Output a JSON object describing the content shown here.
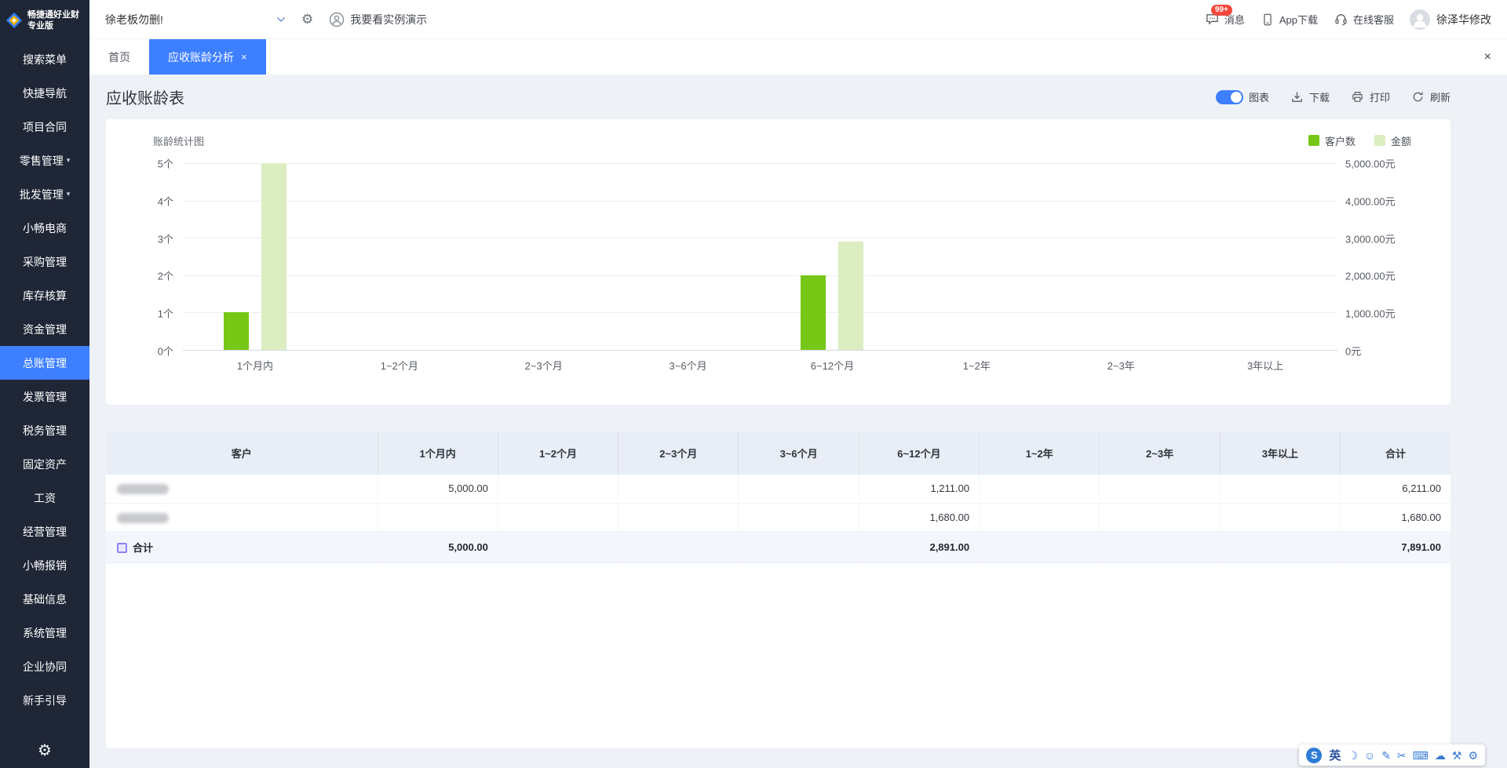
{
  "app": {
    "name": "畅捷通好业财",
    "edition": "专业版"
  },
  "sidebar": {
    "items": [
      {
        "label": "搜索菜单"
      },
      {
        "label": "快捷导航"
      },
      {
        "label": "项目合同"
      },
      {
        "label": "零售管理",
        "has_dropdown": true
      },
      {
        "label": "批发管理",
        "has_dropdown": true
      },
      {
        "label": "小畅电商"
      },
      {
        "label": "采购管理"
      },
      {
        "label": "库存核算"
      },
      {
        "label": "资金管理"
      },
      {
        "label": "总账管理",
        "active": true
      },
      {
        "label": "发票管理"
      },
      {
        "label": "税务管理"
      },
      {
        "label": "固定资产"
      },
      {
        "label": "工资"
      },
      {
        "label": "经营管理"
      },
      {
        "label": "小畅报销"
      },
      {
        "label": "基础信息"
      },
      {
        "label": "系统管理"
      },
      {
        "label": "企业协同"
      },
      {
        "label": "新手引导"
      }
    ]
  },
  "topbar": {
    "company": "徐老板勿删!",
    "demo": "我要看实例演示",
    "message": "消息",
    "message_badge": "99+",
    "app_download": "App下载",
    "online_service": "在线客服",
    "user": "徐泽华修改"
  },
  "tabs": [
    {
      "label": "首页",
      "active": false,
      "closable": false
    },
    {
      "label": "应收账龄分析",
      "active": true,
      "closable": true
    }
  ],
  "page": {
    "title": "应收账龄表",
    "controls": {
      "chart_toggle": "图表",
      "download": "下载",
      "print": "打印",
      "refresh": "刷新"
    }
  },
  "chart_data": {
    "type": "bar",
    "title": "账龄统计图",
    "categories": [
      "1个月内",
      "1~2个月",
      "2~3个月",
      "3~6个月",
      "6~12个月",
      "1~2年",
      "2~3年",
      "3年以上"
    ],
    "series": [
      {
        "name": "客户数",
        "axis": "left",
        "color": "#76c716",
        "values": [
          1,
          0,
          0,
          0,
          2,
          0,
          0,
          0
        ]
      },
      {
        "name": "金额",
        "axis": "right",
        "color": "#dcedc1",
        "values": [
          5000,
          0,
          0,
          0,
          2891,
          0,
          0,
          0
        ]
      }
    ],
    "left_axis": {
      "max": 5,
      "ticks": [
        "5个",
        "4个",
        "3个",
        "2个",
        "1个",
        "0个"
      ]
    },
    "right_axis": {
      "max": 5000,
      "ticks": [
        "5,000.00元",
        "4,000.00元",
        "3,000.00元",
        "2,000.00元",
        "1,000.00元",
        "0元"
      ]
    },
    "legend_position": "top-right",
    "grid": true
  },
  "table": {
    "headers": [
      "客户",
      "1个月内",
      "1~2个月",
      "2~3个月",
      "3~6个月",
      "6~12个月",
      "1~2年",
      "2~3年",
      "3年以上",
      "合计"
    ],
    "rows": [
      {
        "customer": "",
        "redacted": true,
        "values": [
          "5,000.00",
          "",
          "",
          "",
          "1,211.00",
          "",
          "",
          "",
          "6,211.00"
        ]
      },
      {
        "customer": "",
        "redacted": true,
        "values": [
          "",
          "",
          "",
          "",
          "1,680.00",
          "",
          "",
          "",
          "1,680.00"
        ]
      }
    ],
    "total": {
      "label": "合计",
      "values": [
        "5,000.00",
        "",
        "",
        "",
        "2,891.00",
        "",
        "",
        "",
        "7,891.00"
      ]
    }
  },
  "ime": {
    "logo": "S",
    "lang": "英",
    "icons": [
      {
        "name": "moon-icon",
        "glyph": "☽"
      },
      {
        "name": "emoji-icon",
        "glyph": "☺"
      },
      {
        "name": "pen-icon",
        "glyph": "✎"
      },
      {
        "name": "scissors-icon",
        "glyph": "✂"
      },
      {
        "name": "keyboard-icon",
        "glyph": "⌨"
      },
      {
        "name": "cloud-icon",
        "glyph": "☁"
      },
      {
        "name": "toolbox-icon",
        "glyph": "⚒"
      },
      {
        "name": "settings-icon",
        "glyph": "⚙"
      }
    ]
  },
  "colors": {
    "accent_blue": "#3d7fff",
    "sidebar_bg": "#1f2636",
    "series_green": "#76c716",
    "series_light_green": "#dcedc1",
    "badge_red": "#f5483d",
    "table_header_bg": "#e9edf5"
  }
}
